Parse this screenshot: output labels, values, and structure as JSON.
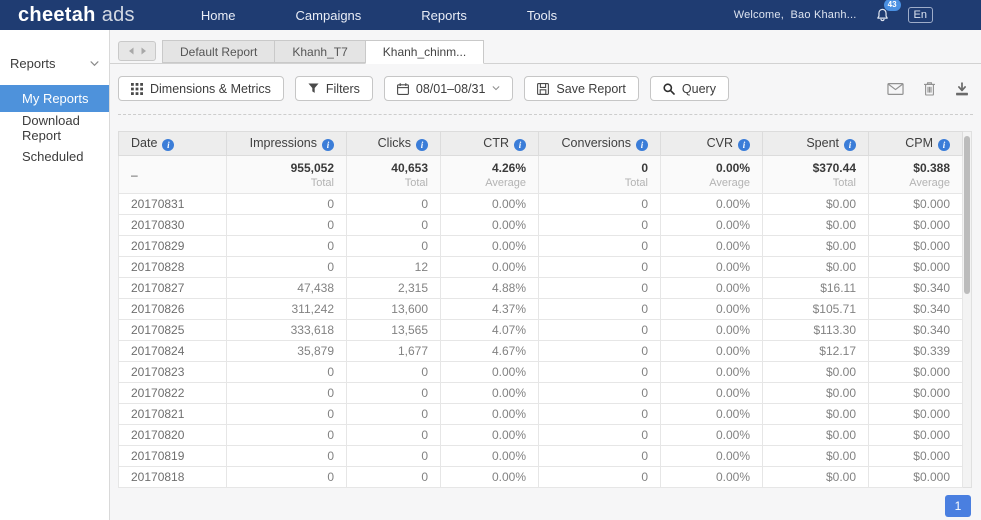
{
  "topbar": {
    "brand_bold": "cheetah",
    "brand_light": "ads",
    "nav": [
      "Home",
      "Campaigns",
      "Reports",
      "Tools"
    ],
    "welcome": "Welcome,",
    "username": "Bao Khanh...",
    "notification_count": "43",
    "language": "En",
    "bg_color": "#1f3c72"
  },
  "sidebar": {
    "section_label": "Reports",
    "items": [
      {
        "label": "My Reports",
        "active": true
      },
      {
        "label": "Download Report",
        "active": false
      },
      {
        "label": "Scheduled",
        "active": false
      }
    ],
    "active_color": "#4e92db"
  },
  "tabs": [
    {
      "label": "Default Report",
      "active": false
    },
    {
      "label": "Khanh_T7",
      "active": false
    },
    {
      "label": "Khanh_chinm...",
      "active": true
    }
  ],
  "toolbar": {
    "dimensions_metrics_label": "Dimensions & Metrics",
    "filters_label": "Filters",
    "date_range_label": "08/01–08/31",
    "save_report_label": "Save Report",
    "query_label": "Query"
  },
  "icons": {
    "info": "i"
  },
  "table": {
    "columns": [
      "Date",
      "Impressions",
      "Clicks",
      "CTR",
      "Conversions",
      "CVR",
      "Spent",
      "CPM"
    ],
    "total_row": {
      "date": "–",
      "values": [
        "955,052",
        "40,653",
        "4.26%",
        "0",
        "0.00%",
        "$370.44",
        "$0.388"
      ],
      "sublabels": [
        "Total",
        "Total",
        "Average",
        "Total",
        "Average",
        "Total",
        "Average"
      ]
    },
    "rows": [
      {
        "date": "20170831",
        "values": [
          "0",
          "0",
          "0.00%",
          "0",
          "0.00%",
          "$0.00",
          "$0.000"
        ]
      },
      {
        "date": "20170830",
        "values": [
          "0",
          "0",
          "0.00%",
          "0",
          "0.00%",
          "$0.00",
          "$0.000"
        ]
      },
      {
        "date": "20170829",
        "values": [
          "0",
          "0",
          "0.00%",
          "0",
          "0.00%",
          "$0.00",
          "$0.000"
        ]
      },
      {
        "date": "20170828",
        "values": [
          "0",
          "12",
          "0.00%",
          "0",
          "0.00%",
          "$0.00",
          "$0.000"
        ]
      },
      {
        "date": "20170827",
        "values": [
          "47,438",
          "2,315",
          "4.88%",
          "0",
          "0.00%",
          "$16.11",
          "$0.340"
        ]
      },
      {
        "date": "20170826",
        "values": [
          "311,242",
          "13,600",
          "4.37%",
          "0",
          "0.00%",
          "$105.71",
          "$0.340"
        ]
      },
      {
        "date": "20170825",
        "values": [
          "333,618",
          "13,565",
          "4.07%",
          "0",
          "0.00%",
          "$113.30",
          "$0.340"
        ]
      },
      {
        "date": "20170824",
        "values": [
          "35,879",
          "1,677",
          "4.67%",
          "0",
          "0.00%",
          "$12.17",
          "$0.339"
        ]
      },
      {
        "date": "20170823",
        "values": [
          "0",
          "0",
          "0.00%",
          "0",
          "0.00%",
          "$0.00",
          "$0.000"
        ]
      },
      {
        "date": "20170822",
        "values": [
          "0",
          "0",
          "0.00%",
          "0",
          "0.00%",
          "$0.00",
          "$0.000"
        ]
      },
      {
        "date": "20170821",
        "values": [
          "0",
          "0",
          "0.00%",
          "0",
          "0.00%",
          "$0.00",
          "$0.000"
        ]
      },
      {
        "date": "20170820",
        "values": [
          "0",
          "0",
          "0.00%",
          "0",
          "0.00%",
          "$0.00",
          "$0.000"
        ]
      },
      {
        "date": "20170819",
        "values": [
          "0",
          "0",
          "0.00%",
          "0",
          "0.00%",
          "$0.00",
          "$0.000"
        ]
      },
      {
        "date": "20170818",
        "values": [
          "0",
          "0",
          "0.00%",
          "0",
          "0.00%",
          "$0.00",
          "$0.000"
        ]
      }
    ]
  },
  "pagination": {
    "page": "1"
  }
}
